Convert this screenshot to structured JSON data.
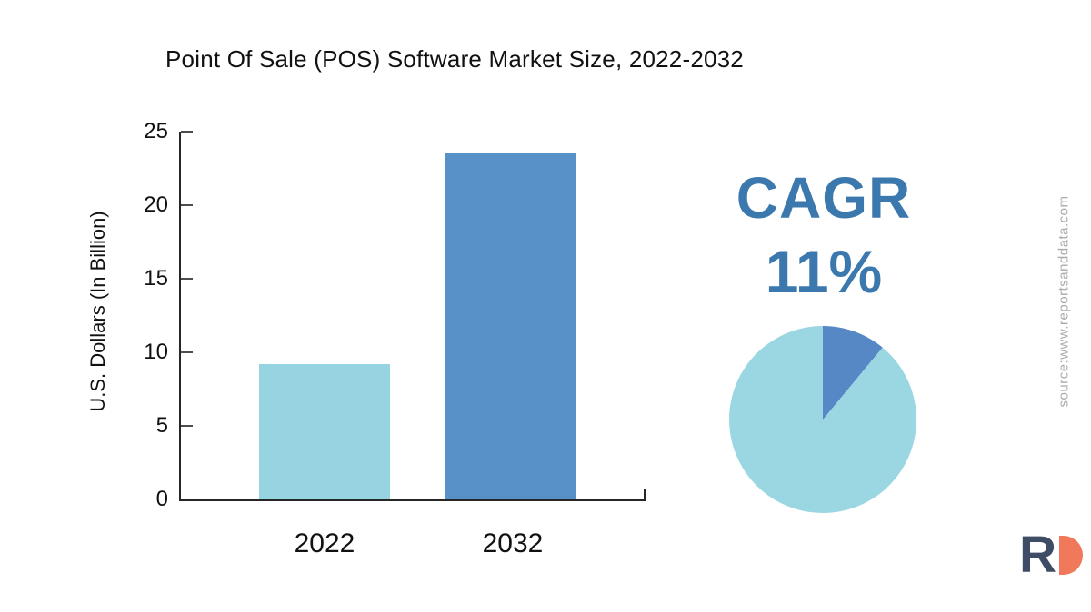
{
  "title": "Point Of Sale (POS) Software Market Size, 2022-2032",
  "chart_data": [
    {
      "type": "bar",
      "title": "Point Of Sale (POS) Software Market Size, 2022-2032",
      "categories": [
        "2022",
        "2032"
      ],
      "values": [
        9.2,
        23.6
      ],
      "xlabel": "",
      "ylabel": "U.S. Dollars (In Billion)",
      "ylim": [
        0,
        25
      ],
      "yticks": [
        0,
        5,
        10,
        15,
        20,
        25
      ],
      "bar_colors": [
        "#96d4e2",
        "#5890c8"
      ],
      "grid": false,
      "legend": false
    },
    {
      "type": "pie",
      "values": [
        11,
        89
      ],
      "colors": [
        "#5588c4",
        "#9bd7e3"
      ],
      "start_angle_deg": 0,
      "legend": false
    }
  ],
  "cagr_callout": {
    "label": "CAGR",
    "value": "11%",
    "percent": 11,
    "color": "#3b78ae"
  },
  "source_text": "source:www.reportsanddata.com",
  "logo": {
    "letter_r": "R",
    "r_color": "#3e4c66",
    "d_color": "#f0795b"
  }
}
